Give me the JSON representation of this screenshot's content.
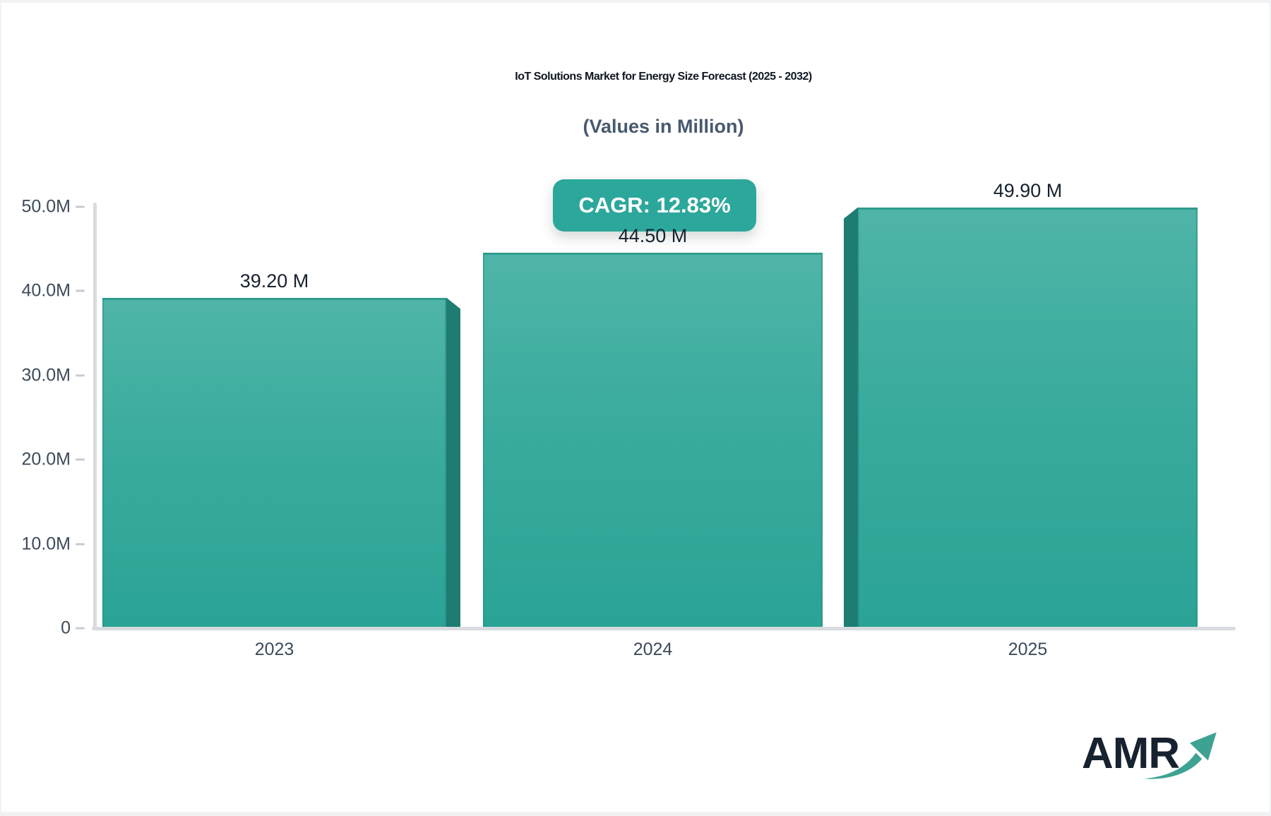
{
  "chart": {
    "title": "IoT Solutions Market for Energy Size Forecast (2025 - 2032)",
    "subtitle": "(Values in Million)",
    "cagr_label": "CAGR: 12.83%"
  },
  "chart_data": {
    "type": "bar",
    "title": "IoT Solutions Market for Energy Size Forecast (2025 - 2032)",
    "subtitle": "(Values in Million)",
    "categories": [
      "2023",
      "2024",
      "2025"
    ],
    "values": [
      39.2,
      44.5,
      49.9
    ],
    "value_labels": [
      "39.20 M",
      "44.50 M",
      "49.90 M"
    ],
    "unit": "Million",
    "cagr_annotation": "CAGR: 12.83%",
    "ylim": [
      0,
      50
    ],
    "ytick_values": [
      0,
      10,
      20,
      30,
      40,
      50
    ],
    "ytick_labels": [
      "0",
      "10.0M",
      "20.0M",
      "30.0M",
      "40.0M",
      "50.0M"
    ],
    "xlabel": "",
    "ylabel": "",
    "grid": false,
    "legend": false,
    "colors": {
      "bar_top": "#4fb5a8",
      "bar_bottom": "#2aa396",
      "bar_side_3d": "#1e7c72",
      "bar_edge": "#2f9a8e",
      "axis_line": "#d8dbdf",
      "tick_text": "#3d4b5a",
      "badge_bg": "#2ca79b",
      "badge_text": "#ffffff"
    }
  },
  "logo": {
    "text": "AMR"
  }
}
